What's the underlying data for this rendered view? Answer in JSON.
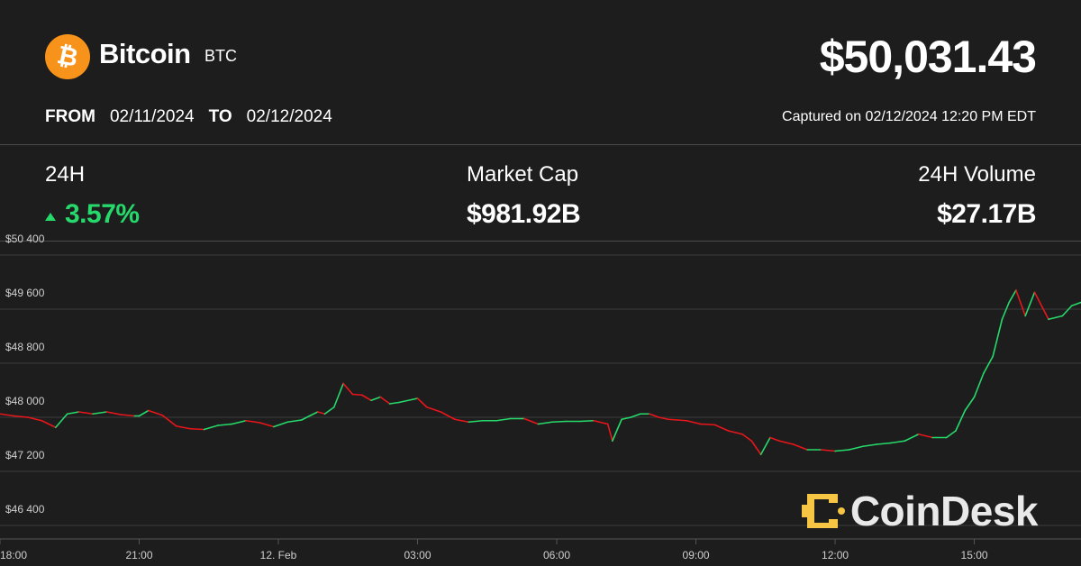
{
  "header": {
    "coin_name": "Bitcoin",
    "ticker": "BTC",
    "price": "$50,031.43",
    "from_label": "FROM",
    "from_date": "02/11/2024",
    "to_label": "TO",
    "to_date": "02/12/2024",
    "captured": "Captured on 02/12/2024 12:20 PM EDT"
  },
  "stats": {
    "change_label": "24H",
    "change_value": "3.57%",
    "market_cap_label": "Market Cap",
    "market_cap_value": "$981.92B",
    "volume_label": "24H Volume",
    "volume_value": "$27.17B"
  },
  "colors": {
    "background": "#1d1d1d",
    "up": "#26d96b",
    "down": "#e8161b",
    "bitcoin_orange": "#f7931a",
    "brand_gold": "#f5c543"
  },
  "icons": {
    "logo": "bitcoin-logo-icon",
    "change": "triangle-up-icon",
    "watermark": "coindesk-logo-icon"
  },
  "watermark": {
    "text": "CoinDesk"
  },
  "chart_data": {
    "type": "line",
    "title": "",
    "xlabel": "",
    "ylabel": "",
    "x_ticks": [
      "18:00",
      "21:00",
      "12. Feb",
      "03:00",
      "06:00",
      "09:00",
      "12:00",
      "15:00"
    ],
    "x_tick_hours": [
      0,
      3,
      6,
      9,
      12,
      15,
      18,
      21
    ],
    "y_ticks": [
      "$46 400",
      "$47 200",
      "$48 000",
      "$48 800",
      "$49 600",
      "$50 400"
    ],
    "y_tick_values": [
      46400,
      47200,
      48000,
      48800,
      49600,
      50400
    ],
    "xlim": [
      0,
      23.3
    ],
    "ylim": [
      46200,
      50600
    ],
    "grid": true,
    "line_colors": {
      "up": "#26d96b",
      "down": "#e8161b"
    },
    "series": [
      {
        "x": [
          0,
          0.3,
          0.6,
          0.9,
          1.2,
          1.45,
          1.7,
          2.0,
          2.3,
          2.6,
          2.9,
          3.0,
          3.2,
          3.5,
          3.8,
          4.1,
          4.4,
          4.7,
          5.0,
          5.3,
          5.6,
          5.9,
          6.2,
          6.5,
          6.7,
          6.85,
          7.0,
          7.2,
          7.4,
          7.6,
          7.8,
          8.0,
          8.2,
          8.4,
          8.6,
          8.8,
          9.0,
          9.2,
          9.5,
          9.8,
          10.1,
          10.4,
          10.7,
          11.0,
          11.3,
          11.6,
          11.9,
          12.2,
          12.5,
          12.8,
          13.1,
          13.2,
          13.4,
          13.6,
          13.8,
          14.0,
          14.2,
          14.4,
          14.6,
          14.8,
          15.1,
          15.4,
          15.7,
          16.0,
          16.2,
          16.4,
          16.6,
          16.8,
          17.1,
          17.4,
          17.7,
          18.0,
          18.3,
          18.6,
          18.9,
          19.2,
          19.5,
          19.8,
          20.1,
          20.4,
          20.6,
          20.8,
          21.0,
          21.2,
          21.4,
          21.6,
          21.75,
          21.9,
          22.1,
          22.3,
          22.6,
          22.9,
          23.1,
          23.3
        ],
        "y": [
          48050,
          48020,
          48000,
          47950,
          47850,
          48050,
          48080,
          48050,
          48080,
          48040,
          48020,
          48020,
          48100,
          48030,
          47870,
          47830,
          47820,
          47880,
          47900,
          47950,
          47920,
          47860,
          47930,
          47960,
          48030,
          48080,
          48050,
          48150,
          48500,
          48340,
          48330,
          48250,
          48300,
          48200,
          48220,
          48250,
          48280,
          48150,
          48080,
          47970,
          47930,
          47950,
          47950,
          47980,
          47980,
          47900,
          47930,
          47940,
          47940,
          47950,
          47900,
          47650,
          47970,
          48000,
          48050,
          48050,
          48000,
          47970,
          47960,
          47950,
          47900,
          47890,
          47800,
          47750,
          47650,
          47450,
          47700,
          47650,
          47600,
          47520,
          47520,
          47500,
          47520,
          47570,
          47600,
          47620,
          47650,
          47750,
          47700,
          47700,
          47800,
          48100,
          48300,
          48650,
          48900,
          49450,
          49700,
          49880,
          49500,
          49850,
          49450,
          49500,
          49650,
          49700
        ]
      }
    ]
  }
}
